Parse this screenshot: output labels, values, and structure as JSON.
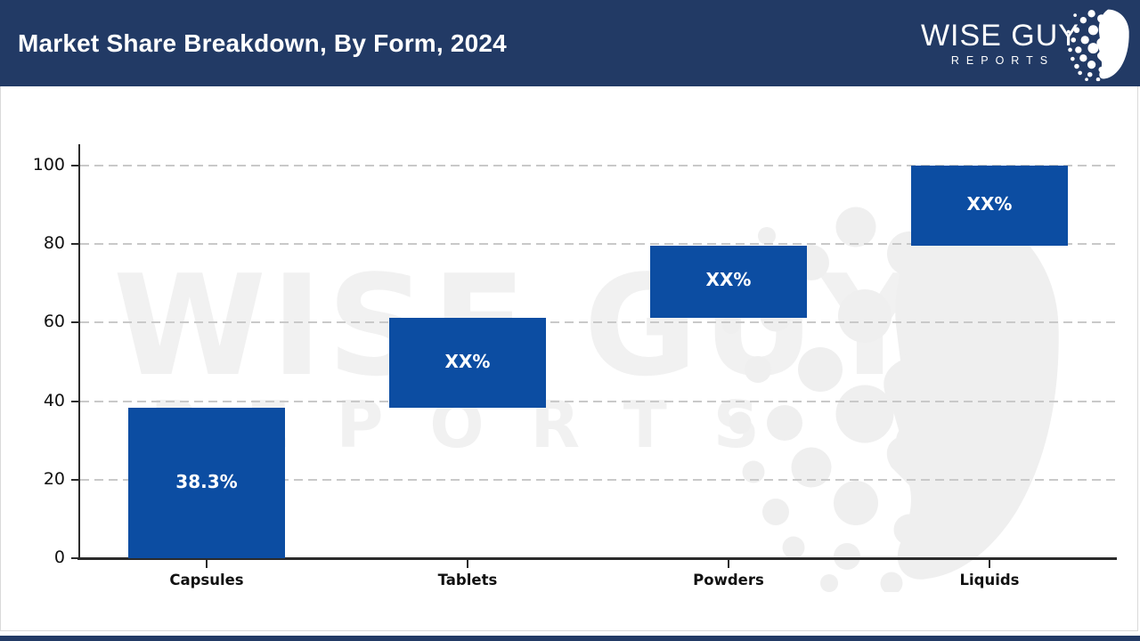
{
  "header": {
    "title": "Market Share Breakdown, By Form, 2024",
    "logo": {
      "wordmark": "WISE GUY",
      "subtext": "REPORTS"
    }
  },
  "watermark": {
    "wordmark": "WISE GUY",
    "subtext": "REPORTS"
  },
  "chart_data": {
    "type": "bar",
    "subtype": "waterfall",
    "title": "Market Share Breakdown, By Form, 2024",
    "categories": [
      "Capsules",
      "Tablets",
      "Powders",
      "Liquids"
    ],
    "segments": [
      {
        "start": 0,
        "end": 38.3
      },
      {
        "start": 38.3,
        "end": 61.2
      },
      {
        "start": 61.2,
        "end": 79.7
      },
      {
        "start": 79.7,
        "end": 100
      }
    ],
    "bar_labels": [
      "38.3%",
      "XX%",
      "XX%",
      "XX%"
    ],
    "xlabel": "",
    "ylabel": "",
    "yticks": [
      0,
      20,
      40,
      60,
      80,
      100
    ],
    "ylim": [
      0,
      105
    ],
    "grid": "horizontal-dashed",
    "legend": "none",
    "colors": {
      "bar": "#0C4DA2",
      "bar_label": "#FFFFFF",
      "grid": "#C9C9C9",
      "axis": "#2B2B2B"
    }
  },
  "theme": {
    "navy": "#223A65",
    "background": "#FFFFFF",
    "card_border": "#D9D9D9",
    "watermark_text": "#F1F1F1",
    "watermark_face": "#EFEFEF"
  }
}
